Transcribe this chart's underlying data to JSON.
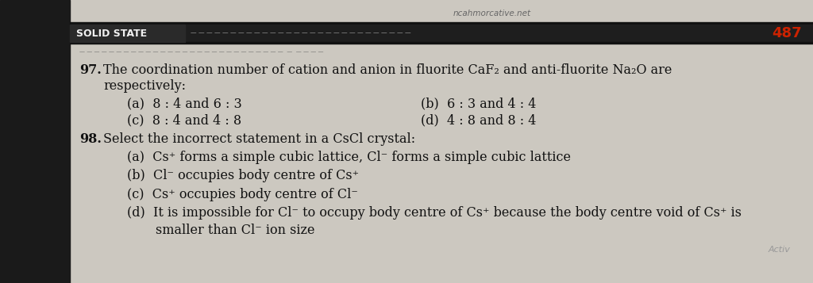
{
  "bg_color": "#ccc8c0",
  "left_bar_color": "#1a1a1a",
  "header_bar_color": "#1e1e1e",
  "header_label_bg": "#2a2a2a",
  "header_text": "SOLID STATE",
  "header_text_color": "#f0f0f0",
  "page_number": "487",
  "page_number_color": "#cc2200",
  "text_color": "#111111",
  "website_text": "ncahmorcative.net",
  "website_color": "#666666",
  "activ_color": "#999999",
  "q97_main": "The coordination number of cation and anion in fluorite CaF",
  "q97_sub2": "2",
  "q97_main2": " and anti-fluorite Na",
  "q97_sub2b": "2",
  "q97_main3": "O are",
  "q97_cont": "respectively:",
  "q97_a": "(a)  8 : 4 and 6 : 3",
  "q97_b": "(b)  6 : 3 and 4 : 4",
  "q97_c": "(c)  8 : 4 and 4 : 8",
  "q97_d": "(d)  4 : 8 and 8 : 4",
  "q98_main": "Select the incorrect statement in a CsCl crystal:",
  "q98_a": "(a)  Cs",
  "q98_a_sup": "+",
  "q98_a2": " forms a simple cubic lattice, Cl",
  "q98_a_sup2": "−",
  "q98_a3": " forms a simple cubic lattice",
  "q98_b1": "(b)  Cl",
  "q98_b_sup": "−",
  "q98_b2": " occupies body centre of Cs",
  "q98_b_sup2": "+",
  "q98_c1": "(c)  Cs",
  "q98_c_sup": "+",
  "q98_c2": " occupies body centre of Cl",
  "q98_c_sup2": "−",
  "q98_d1": "(d)  It is impossible for Cl",
  "q98_d_sup1": "−",
  "q98_d2": " to occupy body centre of Cs",
  "q98_d_sup2": "+",
  "q98_d3": " because the body centre void of Cs",
  "q98_d_sup3": "+",
  "q98_d4": " is",
  "q98_d5": "         smaller than Cl",
  "q98_d_sup4": "−",
  "q98_d6": " ion size"
}
